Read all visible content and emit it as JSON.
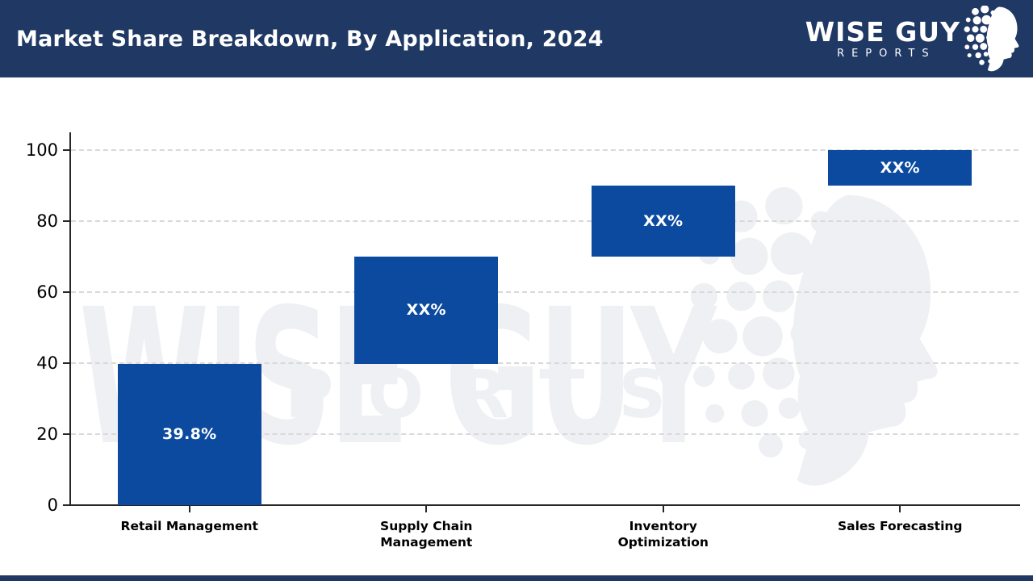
{
  "header": {
    "title": "Market Share Breakdown, By Application, 2024",
    "logo": {
      "wordmark": "WISE GUY",
      "subtext": "REPORTS"
    }
  },
  "watermark": {
    "line1": "WISE GUY",
    "line2": "REPORTS"
  },
  "chart_data": {
    "type": "bar",
    "subtype": "waterfall",
    "title": "Market Share Breakdown, By Application, 2024",
    "categories": [
      "Retail Management",
      "Supply Chain\nManagement",
      "Inventory\nOptimization",
      "Sales Forecasting"
    ],
    "segments": [
      {
        "category": "Retail Management",
        "start": 0,
        "end": 39.8,
        "label": "39.8%"
      },
      {
        "category": "Supply Chain Management",
        "start": 39.8,
        "end": 70,
        "label": "XX%"
      },
      {
        "category": "Inventory Optimization",
        "start": 70,
        "end": 90,
        "label": "XX%"
      },
      {
        "category": "Sales Forecasting",
        "start": 90,
        "end": 100,
        "label": "XX%"
      }
    ],
    "y_ticks": [
      0,
      20,
      40,
      60,
      80,
      100
    ],
    "ylim": [
      0,
      104.8
    ],
    "grid": "horizontal-dashed",
    "legend": "none",
    "bar_color": "#0b4a9f",
    "bar_label_color": "#ffffff"
  },
  "colors": {
    "header_bg": "#1f3864",
    "footer_bg": "#1f3864",
    "bar": "#0b4a9f",
    "gridline": "#d9d9d9",
    "axis": "#262626",
    "watermark": "#eff0f3"
  }
}
